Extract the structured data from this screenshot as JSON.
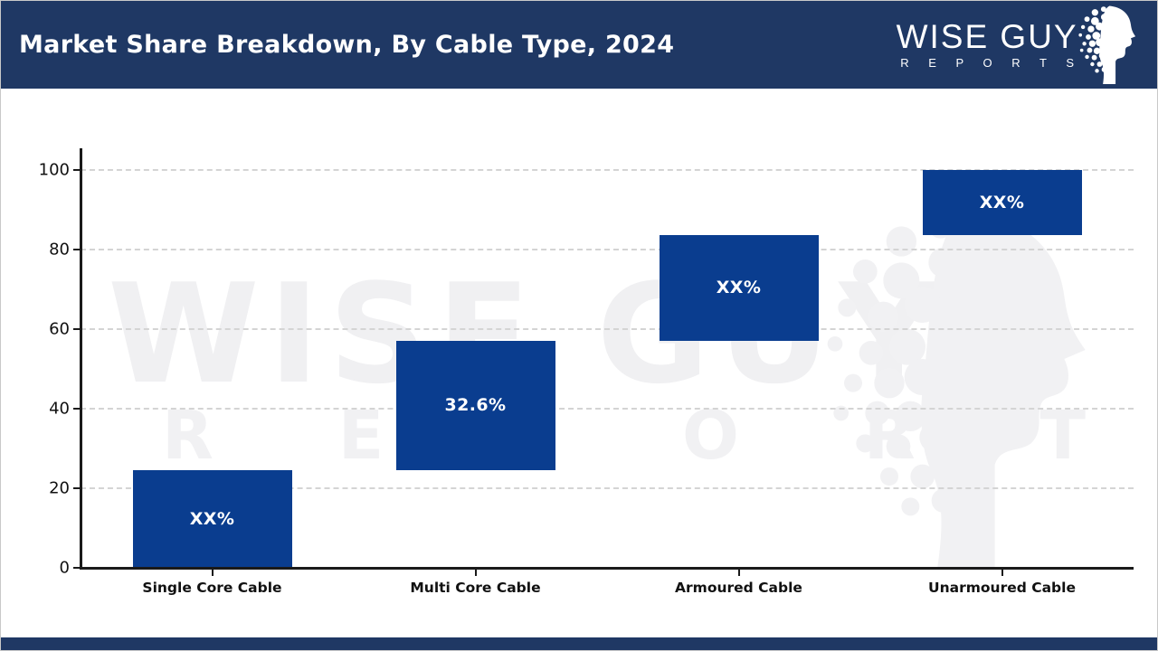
{
  "header": {
    "title": "Market Share Breakdown, By Cable Type, 2024",
    "logo": {
      "name": "WISE GUY",
      "sub": "R E P O R T S"
    }
  },
  "watermark": {
    "line1": "WISE GUY",
    "line2": "R E P O R T S"
  },
  "chart_data": {
    "type": "bar",
    "subtype": "floating-segment-waterfall",
    "title": "Market Share Breakdown, By Cable Type, 2024",
    "categories": [
      "Single Core Cable",
      "Multi Core Cable",
      "Armoured Cable",
      "Unarmoured Cable"
    ],
    "segments": [
      {
        "category": "Single Core Cable",
        "start": 0,
        "end": 24.5,
        "label": "XX%"
      },
      {
        "category": "Multi Core Cable",
        "start": 24.5,
        "end": 57.1,
        "label": "32.6%"
      },
      {
        "category": "Armoured Cable",
        "start": 57.1,
        "end": 83.6,
        "label": "XX%"
      },
      {
        "category": "Unarmoured Cable",
        "start": 83.6,
        "end": 100,
        "label": "XX%"
      }
    ],
    "yticks": [
      0,
      20,
      40,
      60,
      80,
      100
    ],
    "ylim": [
      0,
      106
    ],
    "xlabel": "",
    "ylabel": "",
    "grid": "horizontal-dashed",
    "legend": "none"
  },
  "colors": {
    "header_bg": "#1f3864",
    "footer_bg": "#1f3864",
    "bar": "#0a3d8f",
    "axis": "#1a1a1a",
    "grid": "#d4d4d4",
    "watermark": "#f0f0f2"
  }
}
